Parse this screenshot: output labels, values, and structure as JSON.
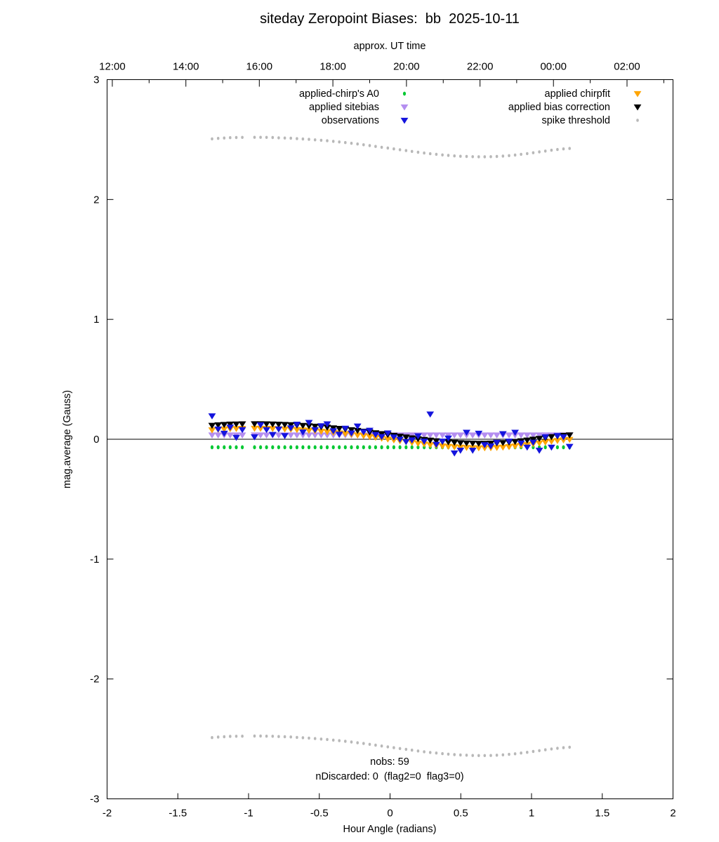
{
  "title": "siteday Zeropoint Biases:  bb  2025-10-11",
  "chart_data": {
    "type": "scatter",
    "x_axis": {
      "label": "Hour Angle (radians)",
      "lim": [
        -2,
        2
      ],
      "ticks": [
        {
          "v": -2,
          "label": "-2"
        },
        {
          "v": -1.5,
          "label": "-1.5"
        },
        {
          "v": -1,
          "label": "-1"
        },
        {
          "v": -0.5,
          "label": "-0.5"
        },
        {
          "v": 0,
          "label": "0"
        },
        {
          "v": 0.5,
          "label": "0.5"
        },
        {
          "v": 1,
          "label": "1"
        },
        {
          "v": 1.5,
          "label": "1.5"
        },
        {
          "v": 2,
          "label": "2"
        }
      ]
    },
    "x2_axis": {
      "label": "approx. UT time",
      "major": [
        {
          "label": "12:00",
          "x": -1.963
        },
        {
          "label": "14:00",
          "x": -1.443
        },
        {
          "label": "16:00",
          "x": -0.924
        },
        {
          "label": "18:00",
          "x": -0.404
        },
        {
          "label": "20:00",
          "x": 0.116
        },
        {
          "label": "22:00",
          "x": 0.636
        },
        {
          "label": "00:00",
          "x": 1.155
        },
        {
          "label": "02:00",
          "x": 1.675
        }
      ],
      "minor_x": [
        -1.703,
        -1.183,
        -0.664,
        -0.144,
        0.376,
        0.895,
        1.415,
        1.935
      ]
    },
    "y_axis": {
      "label": "mag.average (Gauss)",
      "lim": [
        -3,
        3
      ],
      "zeroline": true,
      "ticks": [
        {
          "v": 3,
          "label": "3"
        },
        {
          "v": 2,
          "label": "2"
        },
        {
          "v": 1,
          "label": "1"
        },
        {
          "v": 0,
          "label": "0"
        },
        {
          "v": -1,
          "label": "-1"
        },
        {
          "v": -2,
          "label": "-2"
        },
        {
          "v": -3,
          "label": "-3"
        }
      ]
    },
    "x": [
      -1.258,
      -1.215,
      -1.172,
      -1.13,
      -1.087,
      -1.044,
      -0.958,
      -0.915,
      -0.873,
      -0.83,
      -0.787,
      -0.744,
      -0.701,
      -0.658,
      -0.616,
      -0.573,
      -0.53,
      -0.487,
      -0.444,
      -0.401,
      -0.359,
      -0.316,
      -0.273,
      -0.23,
      -0.187,
      -0.144,
      -0.102,
      -0.059,
      -0.016,
      0.027,
      0.07,
      0.113,
      0.155,
      0.198,
      0.241,
      0.284,
      0.327,
      0.37,
      0.412,
      0.455,
      0.498,
      0.541,
      0.584,
      0.627,
      0.669,
      0.712,
      0.755,
      0.798,
      0.841,
      0.884,
      0.926,
      0.969,
      1.012,
      1.055,
      1.098,
      1.141,
      1.183,
      1.226,
      1.269
    ],
    "series": [
      {
        "id": "a0",
        "name": "applied-chirp's A0",
        "marker": "dot",
        "color": "#00c832",
        "const_value": -0.067
      },
      {
        "id": "sitebias",
        "name": "applied sitebias",
        "marker": "triangle",
        "color": "#b48ef0",
        "const_value": 0.035
      },
      {
        "id": "chirpfit",
        "name": "applied chirpfit",
        "marker": "triangle",
        "color": "#ffa500",
        "values": [
          0.078,
          0.082,
          0.085,
          0.088,
          0.089,
          0.09,
          0.091,
          0.091,
          0.09,
          0.089,
          0.087,
          0.085,
          0.083,
          0.08,
          0.077,
          0.074,
          0.07,
          0.066,
          0.062,
          0.057,
          0.052,
          0.047,
          0.041,
          0.035,
          0.029,
          0.022,
          0.015,
          0.008,
          0.001,
          -0.006,
          -0.013,
          -0.02,
          -0.027,
          -0.034,
          -0.04,
          -0.046,
          -0.051,
          -0.056,
          -0.06,
          -0.064,
          -0.067,
          -0.069,
          -0.071,
          -0.072,
          -0.072,
          -0.071,
          -0.069,
          -0.066,
          -0.062,
          -0.057,
          -0.051,
          -0.045,
          -0.038,
          -0.031,
          -0.024,
          -0.017,
          -0.011,
          -0.006,
          -0.002
        ]
      },
      {
        "id": "bias_correction",
        "name": "applied bias correction",
        "marker": "triangle",
        "color": "#000000",
        "values": [
          0.116,
          0.12,
          0.123,
          0.126,
          0.127,
          0.128,
          0.129,
          0.129,
          0.128,
          0.127,
          0.125,
          0.123,
          0.121,
          0.118,
          0.115,
          0.112,
          0.108,
          0.104,
          0.1,
          0.095,
          0.09,
          0.085,
          0.079,
          0.073,
          0.067,
          0.06,
          0.053,
          0.046,
          0.039,
          0.032,
          0.025,
          0.018,
          0.011,
          0.004,
          -0.002,
          -0.008,
          -0.013,
          -0.018,
          -0.022,
          -0.026,
          -0.029,
          -0.031,
          -0.033,
          -0.034,
          -0.034,
          -0.033,
          -0.031,
          -0.028,
          -0.024,
          -0.019,
          -0.013,
          -0.007,
          0.0,
          0.007,
          0.014,
          0.021,
          0.027,
          0.032,
          0.036
        ]
      },
      {
        "id": "observations",
        "name": "observations",
        "marker": "triangle",
        "color": "#1414dd",
        "values": [
          0.195,
          0.085,
          0.05,
          0.1,
          0.015,
          0.08,
          0.02,
          0.12,
          0.08,
          0.04,
          0.085,
          0.03,
          0.095,
          0.125,
          0.06,
          0.14,
          0.08,
          0.112,
          0.128,
          0.07,
          0.042,
          0.092,
          0.052,
          0.11,
          0.062,
          0.075,
          0.04,
          0.022,
          0.052,
          0.018,
          0.0,
          -0.02,
          -0.006,
          0.028,
          -0.016,
          0.21,
          -0.042,
          -0.016,
          0.01,
          -0.115,
          -0.092,
          0.058,
          -0.092,
          0.05,
          -0.046,
          -0.056,
          -0.026,
          0.046,
          -0.016,
          0.058,
          -0.032,
          -0.066,
          -0.026,
          -0.092,
          0.02,
          -0.066,
          0.03,
          0.02,
          -0.06
        ]
      },
      {
        "id": "spike_upper",
        "name": "spike threshold",
        "marker": "smalldot",
        "color": "#b8b8b8",
        "values": [
          2.506,
          2.51,
          2.513,
          2.516,
          2.517,
          2.518,
          2.519,
          2.519,
          2.518,
          2.517,
          2.515,
          2.513,
          2.511,
          2.508,
          2.505,
          2.502,
          2.498,
          2.494,
          2.49,
          2.485,
          2.48,
          2.475,
          2.469,
          2.463,
          2.457,
          2.45,
          2.443,
          2.436,
          2.429,
          2.422,
          2.415,
          2.408,
          2.401,
          2.394,
          2.388,
          2.382,
          2.377,
          2.372,
          2.368,
          2.364,
          2.361,
          2.359,
          2.357,
          2.356,
          2.356,
          2.357,
          2.359,
          2.362,
          2.366,
          2.371,
          2.377,
          2.383,
          2.39,
          2.397,
          2.404,
          2.411,
          2.417,
          2.422,
          2.426
        ]
      },
      {
        "id": "spike_lower",
        "name": "spike threshold",
        "marker": "smalldot",
        "color": "#b8b8b8",
        "values": [
          -2.489,
          -2.485,
          -2.482,
          -2.479,
          -2.478,
          -2.477,
          -2.476,
          -2.476,
          -2.477,
          -2.478,
          -2.48,
          -2.482,
          -2.484,
          -2.487,
          -2.49,
          -2.493,
          -2.497,
          -2.501,
          -2.505,
          -2.51,
          -2.515,
          -2.52,
          -2.526,
          -2.532,
          -2.538,
          -2.545,
          -2.552,
          -2.559,
          -2.566,
          -2.573,
          -2.58,
          -2.587,
          -2.594,
          -2.601,
          -2.607,
          -2.613,
          -2.618,
          -2.623,
          -2.627,
          -2.631,
          -2.634,
          -2.636,
          -2.638,
          -2.639,
          -2.639,
          -2.638,
          -2.636,
          -2.633,
          -2.629,
          -2.624,
          -2.618,
          -2.612,
          -2.605,
          -2.598,
          -2.591,
          -2.584,
          -2.578,
          -2.573,
          -2.569
        ]
      }
    ],
    "legend": {
      "columns": [
        {
          "items": [
            {
              "label": "applied-chirp's A0",
              "marker": "dot",
              "color": "#00c832"
            },
            {
              "label": "applied sitebias",
              "marker": "triangle",
              "color": "#b48ef0"
            },
            {
              "label": "observations",
              "marker": "triangle",
              "color": "#1414dd"
            }
          ]
        },
        {
          "items": [
            {
              "label": "applied chirpfit",
              "marker": "triangle",
              "color": "#ffa500"
            },
            {
              "label": "applied bias correction",
              "marker": "triangle",
              "color": "#000000"
            },
            {
              "label": "spike threshold",
              "marker": "smalldot",
              "color": "#b8b8b8"
            }
          ]
        }
      ]
    },
    "annotations": {
      "nobs": "nobs: 59",
      "discarded": "nDiscarded: 0  (flag2=0  flag3=0)"
    }
  }
}
